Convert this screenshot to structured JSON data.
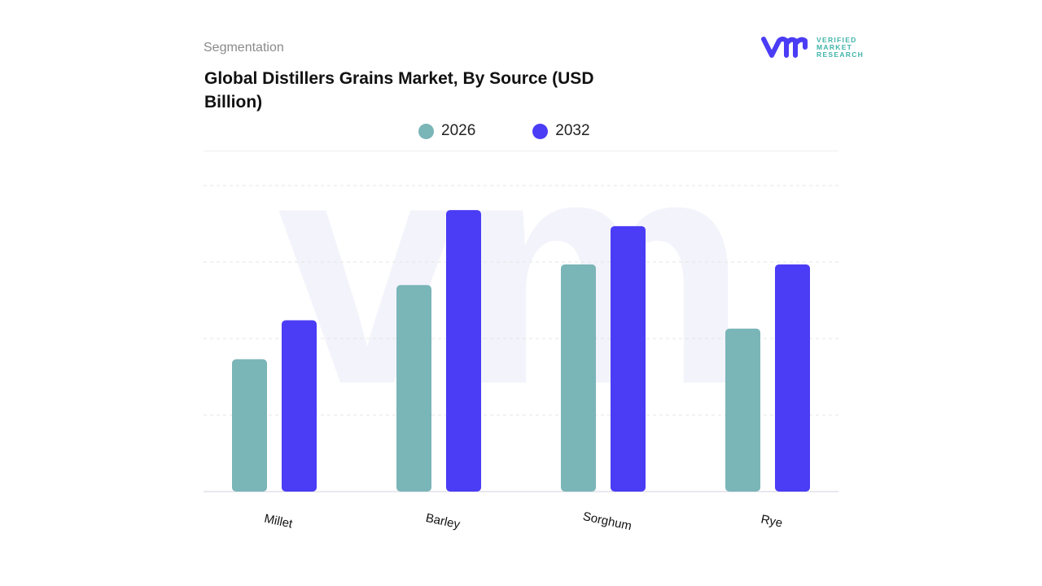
{
  "header": {
    "segment_label": "Segmentation",
    "title": "Global Distillers Grains Market, By Source (USD Billion)"
  },
  "logo": {
    "text_lines": [
      "VERIFIED",
      "MARKET",
      "RESEARCH"
    ],
    "color": "#4b3cf5",
    "text_color": "#3fb3a9"
  },
  "chart_data": {
    "type": "bar",
    "title": "Global Distillers Grains Market, By Source (USD Billion)",
    "categories": [
      "Millet",
      "Barley",
      "Sorghum",
      "Rye"
    ],
    "series": [
      {
        "name": "2026",
        "color": "#7ab5b8",
        "values": [
          1.73,
          2.7,
          2.97,
          2.13
        ]
      },
      {
        "name": "2032",
        "color": "#4b3cf5",
        "values": [
          2.24,
          3.68,
          3.47,
          2.97
        ]
      }
    ],
    "ylim": [
      0,
      4
    ],
    "grid": true,
    "legend": "top-center",
    "y_tick_labels_shown": false
  }
}
